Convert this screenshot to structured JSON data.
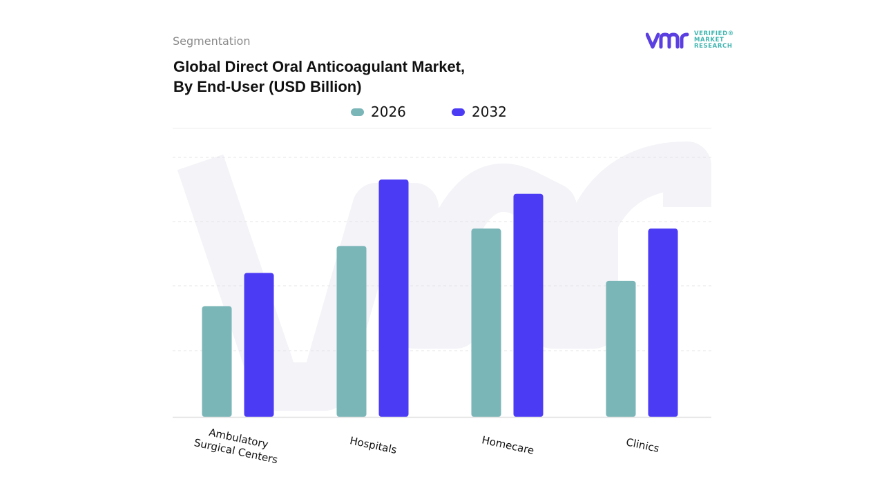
{
  "header": {
    "segmentation": "Segmentation",
    "title_line1": "Global Direct Oral Anticoagulant Market,",
    "title_line2": "By End-User (USD Billion)"
  },
  "logo": {
    "mark": "vmr",
    "line1": "VERIFIED",
    "line2": "MARKET",
    "line3": "RESEARCH",
    "registered": "®",
    "mark_color": "#5b3fe0",
    "text_color": "#3fb5b0"
  },
  "colors": {
    "2026": "#7ab5b7",
    "2032": "#4b3bf5",
    "grid": "#e6e6e6",
    "watermark": "#f3f3f8"
  },
  "chart_data": {
    "type": "bar",
    "categories": [
      "Ambulatory Surgical Centers",
      "Hospitals",
      "Homecare",
      "Clinics"
    ],
    "category_lines": [
      [
        "Ambulatory",
        "Surgical Centers"
      ],
      [
        "Hospitals"
      ],
      [
        "Homecare"
      ],
      [
        "Clinics"
      ]
    ],
    "series": [
      {
        "name": "2026",
        "values": [
          3.5,
          5.4,
          5.95,
          4.3
        ]
      },
      {
        "name": "2032",
        "values": [
          4.55,
          7.5,
          7.05,
          5.95
        ]
      }
    ],
    "ylim": [
      0,
      8.2
    ],
    "grid": true,
    "legend_position": "top-center",
    "title": "Global Direct Oral Anticoagulant Market, By End-User (USD Billion)",
    "xlabel": "",
    "ylabel": ""
  }
}
